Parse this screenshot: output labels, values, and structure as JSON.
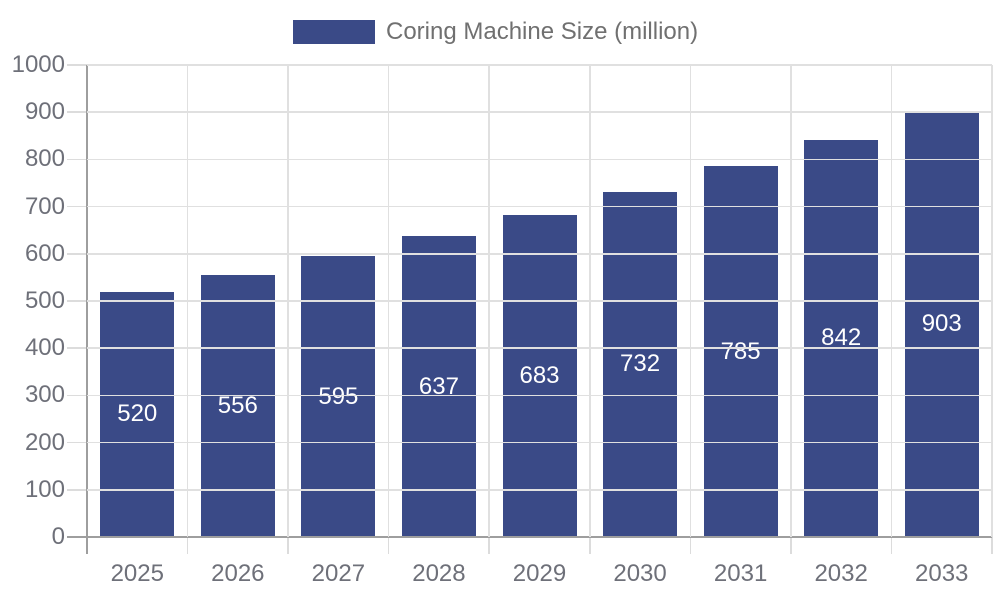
{
  "legend": {
    "label": "Coring Machine Size (million)"
  },
  "chart_data": {
    "type": "bar",
    "title": "Coring Machine Size (million)",
    "series_name": "Coring Machine Size (million)",
    "categories": [
      "2025",
      "2026",
      "2027",
      "2028",
      "2029",
      "2030",
      "2031",
      "2032",
      "2033"
    ],
    "values": [
      520,
      556,
      595,
      637,
      683,
      732,
      785,
      842,
      903
    ],
    "value_labels": [
      "520",
      "556",
      "595",
      "637",
      "683",
      "732",
      "785",
      "842",
      "903"
    ],
    "xlabel": "",
    "ylabel": "",
    "ylim": [
      0,
      1000
    ],
    "ytick_interval": 100,
    "ytick_labels": [
      "0",
      "100",
      "200",
      "300",
      "400",
      "500",
      "600",
      "700",
      "800",
      "900",
      "1000"
    ],
    "grid": true,
    "legend_position": "top",
    "value_labels_inside_bars": true
  },
  "colors": {
    "bar": "#3A4A87",
    "bar_value_label": "#FFFFFF",
    "axis_text": "#6E7079",
    "legend_text": "#707070",
    "grid_line": "#E0E0E0",
    "tick_line": "#DCDCDC",
    "axis_line": "#9E9E9E",
    "background": "#FFFFFF"
  }
}
